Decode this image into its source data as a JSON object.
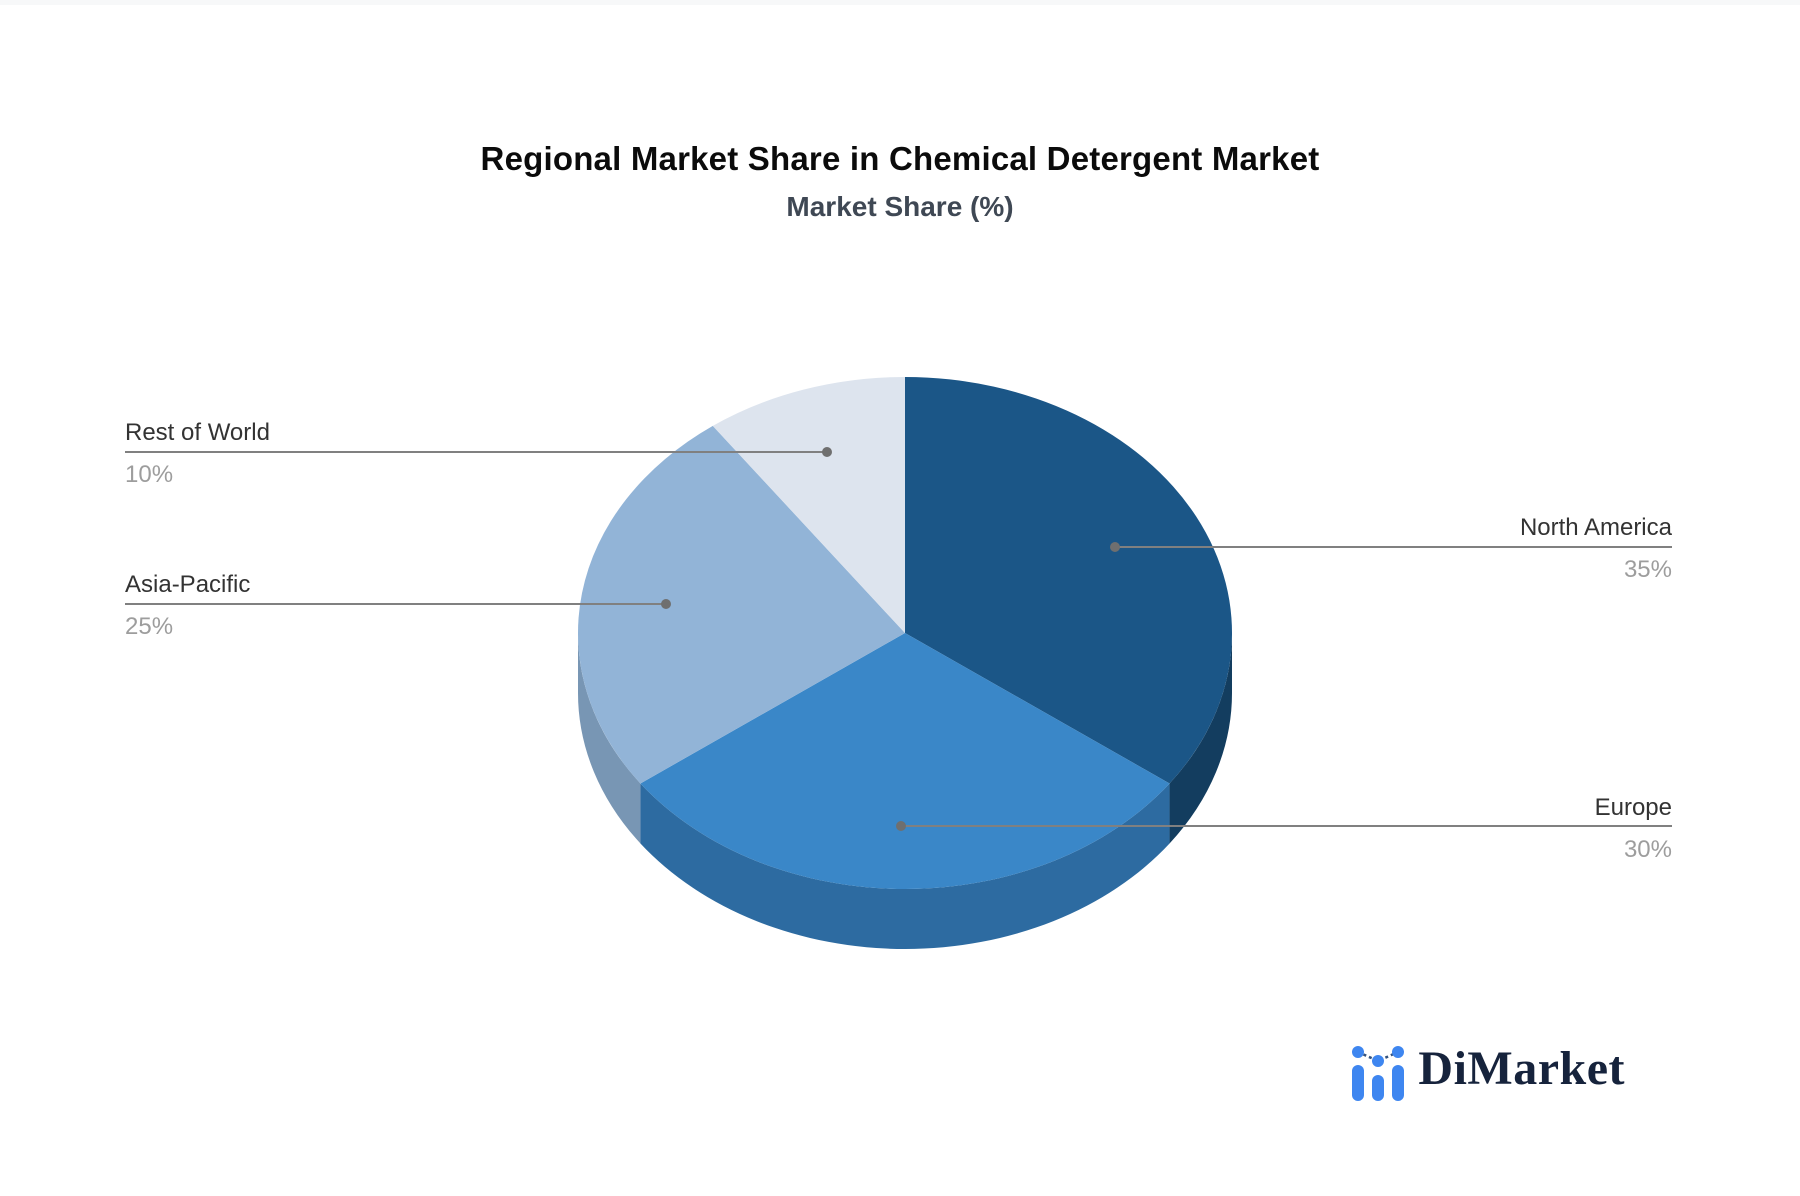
{
  "page": {
    "background": "#ffffff",
    "top_strip_color": "#f7f8f9"
  },
  "header": {
    "title": "Regional Market Share in Chemical Detergent Market",
    "title_color": "#0b0b0b",
    "subtitle": "Market Share (%)",
    "subtitle_color": "#3f4854"
  },
  "chart_data": {
    "type": "pie",
    "effect": "3d",
    "title": "Regional Market Share in Chemical Detergent Market",
    "subtitle": "Market Share (%)",
    "unit": "%",
    "start_angle_deg": 0,
    "direction": "clockwise",
    "slices": [
      {
        "label": "North America",
        "value": 35,
        "pct_text": "35%",
        "color": "#1b5687",
        "side_color": "#133d5f",
        "label_side": "right"
      },
      {
        "label": "Europe",
        "value": 30,
        "pct_text": "30%",
        "color": "#3a87c8",
        "side_color": "#2d6ba1",
        "label_side": "right"
      },
      {
        "label": "Asia-Pacific",
        "value": 25,
        "pct_text": "25%",
        "color": "#92b4d7",
        "side_color": "#7896b4",
        "label_side": "left"
      },
      {
        "label": "Rest of World",
        "value": 10,
        "pct_text": "10%",
        "color": "#dde4ee",
        "side_color": "#b9c5d5",
        "label_side": "left"
      }
    ],
    "label_color": "#333333",
    "pct_color": "#9d9d9d",
    "leader_line_color": "#808080",
    "leader_dot_color": "#6f6f6f",
    "legend_position": "none"
  },
  "logo": {
    "text": "DiMarket",
    "icon": "bar-chart-logo-icon",
    "text_color": "#16233c",
    "icon_color": "#3e86f0",
    "icon_line_color": "#33527e"
  }
}
